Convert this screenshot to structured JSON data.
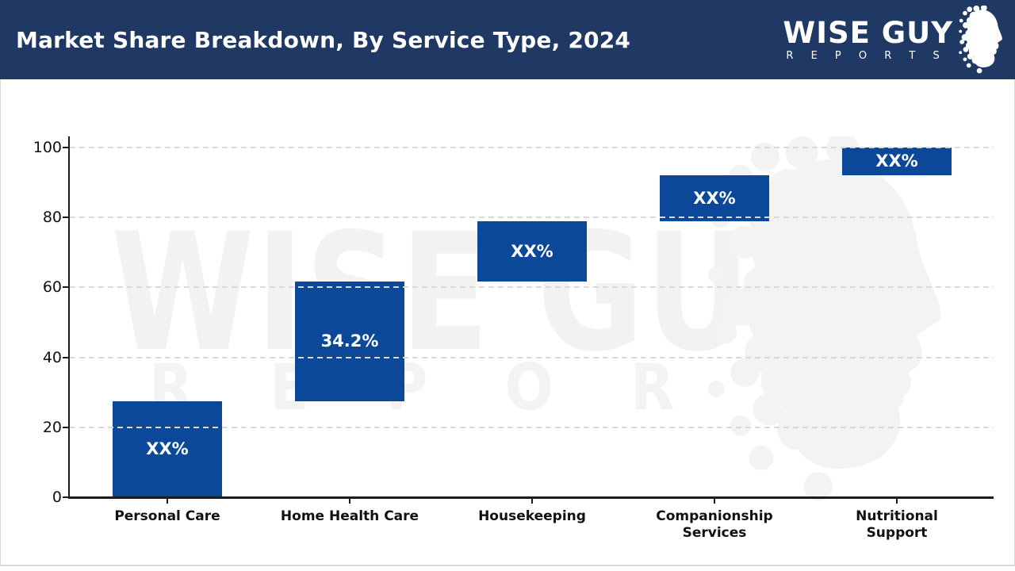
{
  "header": {
    "title": "Market Share Breakdown, By Service Type, 2024",
    "bg_color": "#203864",
    "logo": {
      "line1": "WISE GUY",
      "line2": "R E P O R T S"
    }
  },
  "watermark": {
    "line1": "WISE GUY",
    "line2": "R E P O R T S"
  },
  "chart_data": {
    "type": "bar",
    "variant": "waterfall",
    "title": "Market Share Breakdown, By Service Type, 2024",
    "xlabel": "",
    "ylabel": "",
    "ylim": [
      0,
      105
    ],
    "yticks": [
      0,
      20,
      40,
      60,
      80,
      100
    ],
    "grid": "horizontal-dashed",
    "legend": "none",
    "bar_color": "#0c4899",
    "grid_color": "#d9d9d9",
    "categories": [
      {
        "name": "Personal Care",
        "lines": [
          "Personal Care"
        ]
      },
      {
        "name": "Home Health Care",
        "lines": [
          "Home Health Care"
        ]
      },
      {
        "name": "Housekeeping",
        "lines": [
          "Housekeeping"
        ]
      },
      {
        "name": "Companionship Services",
        "lines": [
          "Companionship",
          "Services"
        ]
      },
      {
        "name": "Nutritional Support",
        "lines": [
          "Nutritional",
          "Support"
        ]
      }
    ],
    "segments": [
      {
        "category": "Personal Care",
        "label": "XX%",
        "start": 0,
        "end": 27.5
      },
      {
        "category": "Home Health Care",
        "label": "34.2%",
        "start": 27.5,
        "end": 61.7
      },
      {
        "category": "Housekeeping",
        "label": "XX%",
        "start": 61.7,
        "end": 78.8
      },
      {
        "category": "Companionship Services",
        "label": "XX%",
        "start": 78.8,
        "end": 92.1
      },
      {
        "category": "Nutritional Support",
        "label": "XX%",
        "start": 92.1,
        "end": 100
      }
    ]
  }
}
